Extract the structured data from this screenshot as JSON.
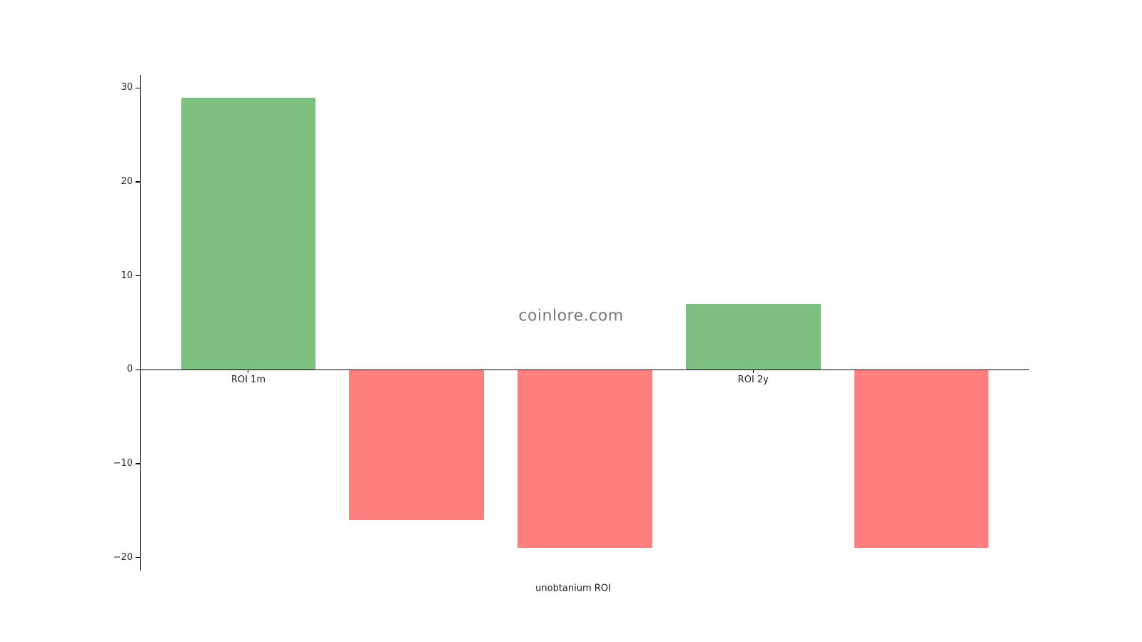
{
  "watermark": {
    "text": "coinlore.com",
    "color": "#777777"
  },
  "chart_data": {
    "type": "bar",
    "title": "",
    "xlabel": "unobtanium ROI",
    "ylabel": "",
    "categories": [
      "ROI 1m",
      "",
      "",
      "ROI 2y",
      ""
    ],
    "values": [
      29,
      -16,
      -19,
      7,
      -19
    ],
    "bar_colors": [
      "#7dc07f",
      "#ff7f7f",
      "#ff7f7f",
      "#7dc07f",
      "#ff7f7f"
    ],
    "positive_color": "#7dc07f",
    "negative_color": "#ff7f7f",
    "bar_width": 0.8,
    "xlim": [
      -0.64,
      4.64
    ],
    "ylim": [
      -21.4,
      31.4
    ],
    "yticks": [
      {
        "label": "30",
        "value": 30
      },
      {
        "label": "20",
        "value": 20
      },
      {
        "label": "10",
        "value": 10
      },
      {
        "label": "0",
        "value": 0
      },
      {
        "label": "−10",
        "value": -10
      },
      {
        "label": "−20",
        "value": -20
      }
    ],
    "visible_x_tick_labels": [
      {
        "index": 0,
        "label": "ROI 1m"
      },
      {
        "index": 3,
        "label": "ROI 2y"
      }
    ],
    "grid": false,
    "legend": null,
    "axis_color": "#000000",
    "tick_label_color": "#262626"
  }
}
